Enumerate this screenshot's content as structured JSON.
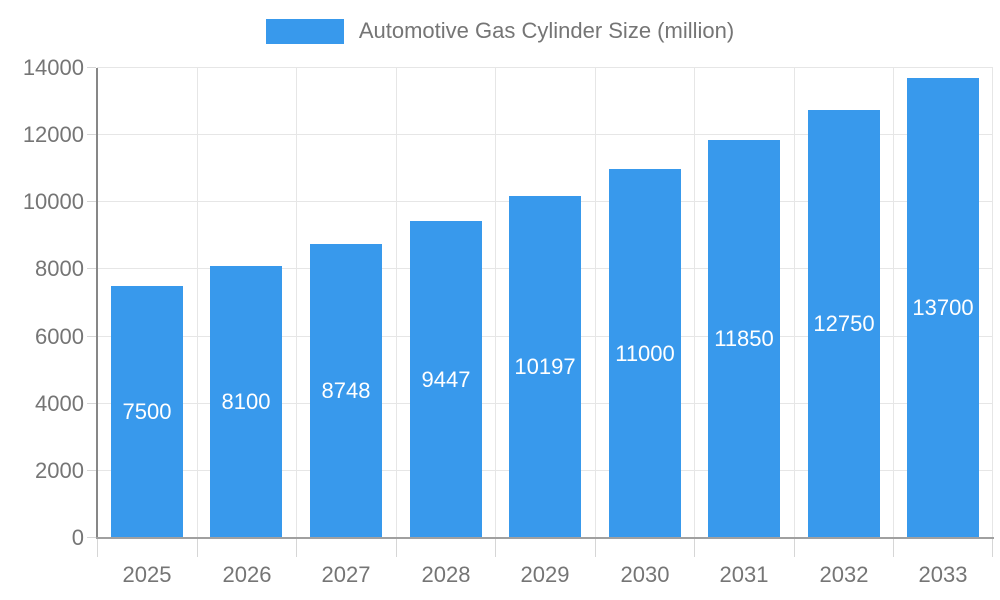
{
  "legend": {
    "label": "Automotive Gas Cylinder Size (million)"
  },
  "chart_data": {
    "type": "bar",
    "title": "Automotive Gas Cylinder Size (million)",
    "categories": [
      "2025",
      "2026",
      "2027",
      "2028",
      "2029",
      "2030",
      "2031",
      "2032",
      "2033"
    ],
    "values": [
      7500,
      8100,
      8748,
      9447,
      10197,
      11000,
      11850,
      12750,
      13700
    ],
    "data_labels": [
      "7500",
      "8100",
      "8748",
      "9447",
      "10197",
      "11000",
      "11850",
      "12750",
      "13700"
    ],
    "xlabel": "",
    "ylabel": "",
    "ylim": [
      0,
      14000
    ],
    "ytick_step": 2000,
    "ytick_labels": [
      "0",
      "2000",
      "4000",
      "6000",
      "8000",
      "10000",
      "12000",
      "14000"
    ],
    "grid": "on",
    "legend_position": "top-center",
    "data_label_position": "inside-center"
  },
  "colors": {
    "bar": "#3899ec",
    "grid": "#e6e6e6",
    "axis_y": "#878787",
    "axis_x": "#a0a0a0",
    "tick": "#d6d6d6",
    "tick_text": "#757575",
    "legend_text": "#757575",
    "data_label": "#ffffff"
  }
}
